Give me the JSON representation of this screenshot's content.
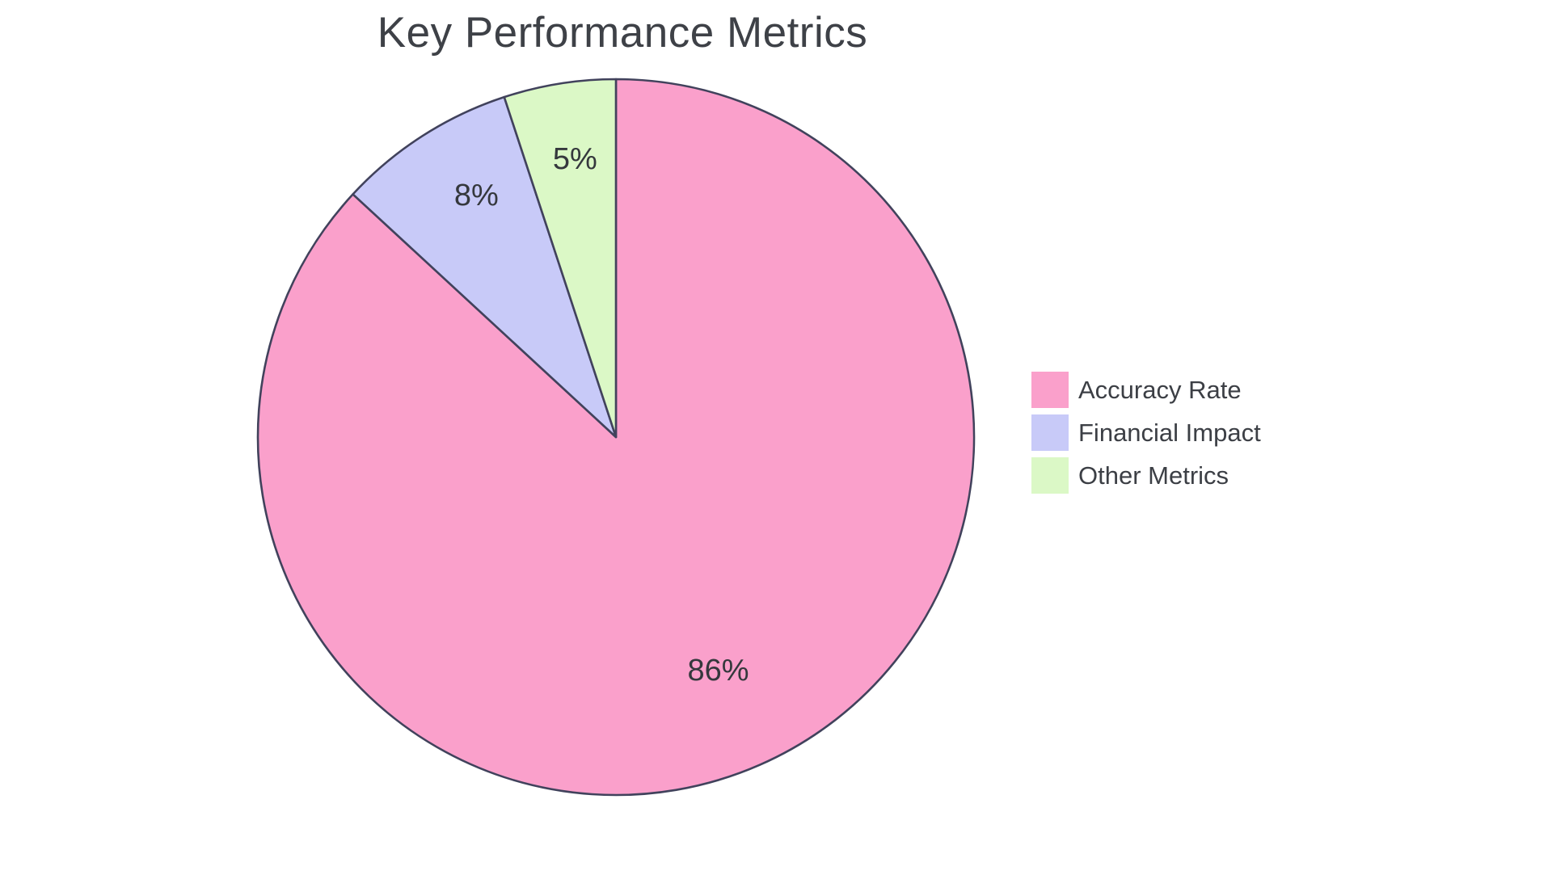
{
  "title": "Key Performance Metrics",
  "chart_data": {
    "type": "pie",
    "title": "Key Performance Metrics",
    "labels": [
      "Accuracy Rate",
      "Financial Impact",
      "Other Metrics"
    ],
    "values": [
      86,
      8,
      5
    ],
    "slice_label_texts": [
      "86%",
      "8%",
      "5%"
    ],
    "unit": "%",
    "colors": [
      "#faa0cb",
      "#c8caf8",
      "#dbf8c6"
    ],
    "border_color": "#41425c",
    "label_text_color": "#35383d",
    "title_color": "#3e4147",
    "legend_text_color": "#3c3f45",
    "start_angle_deg": 0,
    "direction": "clockwise",
    "legend_position": "right",
    "background": "#ffffff"
  }
}
